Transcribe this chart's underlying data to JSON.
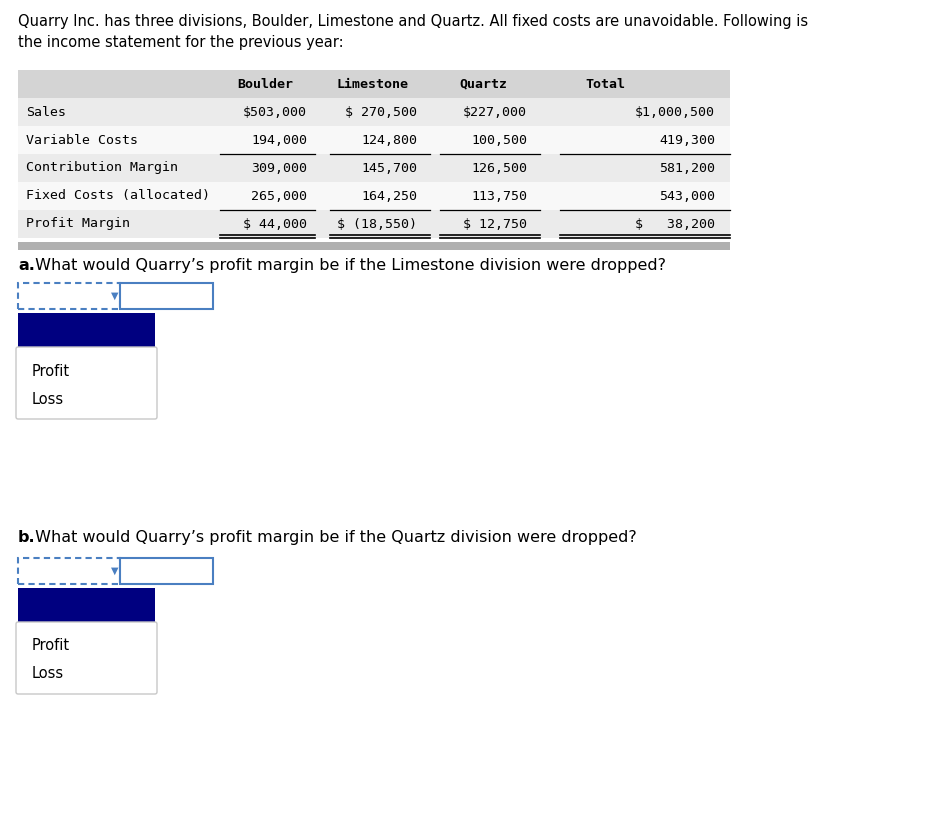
{
  "intro_text_line1": "Quarry Inc. has three divisions, Boulder, Limestone and Quartz. All fixed costs are unavoidable. Following is",
  "intro_text_line2": "the income statement for the previous year:",
  "table_headers": [
    "Boulder",
    "Limestone",
    "Quartz",
    "Total"
  ],
  "table_rows": [
    [
      "Sales",
      "$503,000",
      "$ 270,500",
      "$227,000",
      "$1,000,500"
    ],
    [
      "Variable Costs",
      "194,000",
      "124,800",
      "100,500",
      "419,300"
    ],
    [
      "Contribution Margin",
      "309,000",
      "145,700",
      "126,500",
      "581,200"
    ],
    [
      "Fixed Costs (allocated)",
      "265,000",
      "164,250",
      "113,750",
      "543,000"
    ],
    [
      "Profit Margin",
      "$ 44,000",
      "$ (18,550)",
      "$ 12,750",
      "$   38,200"
    ]
  ],
  "question_a": " What would Quarry’s profit margin be if the Limestone division were dropped?",
  "question_a_bold": "a.",
  "question_b": " What would Quarry’s profit margin be if the Quartz division were dropped?",
  "question_b_bold": "b.",
  "dropdown_labels": [
    "Profit",
    "Loss"
  ],
  "header_bg": "#d4d4d4",
  "row_bg_even": "#ebebeb",
  "row_bg_odd": "#f8f8f8",
  "table_font": "monospace",
  "dark_navy": "#000080",
  "box_border_blue": "#4a7fc1",
  "dropdown_bg": "#ffffff",
  "background": "#ffffff",
  "table_bottom_bar": "#b0b0b0",
  "white_box_border": "#c8c8c8"
}
